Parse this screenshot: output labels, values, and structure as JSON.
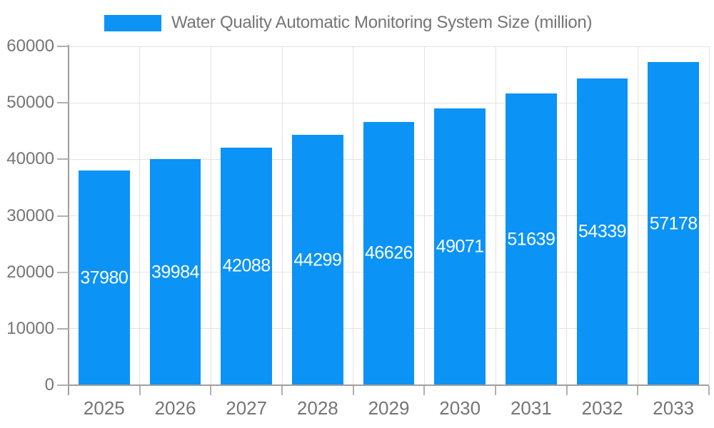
{
  "legend": {
    "label": "Water Quality Automatic Monitoring System Size (million)"
  },
  "chart_data": {
    "type": "bar",
    "title": "Water Quality Automatic Monitoring System Size (million)",
    "categories": [
      "2025",
      "2026",
      "2027",
      "2028",
      "2029",
      "2030",
      "2031",
      "2032",
      "2033"
    ],
    "values": [
      37980,
      39984,
      42088,
      44299,
      46626,
      49071,
      51639,
      54339,
      57178
    ],
    "xlabel": "",
    "ylabel": "",
    "ylim": [
      0,
      60000
    ],
    "yticks": [
      0,
      10000,
      20000,
      30000,
      40000,
      50000,
      60000
    ],
    "grid": true,
    "legend_position": "top",
    "colors": {
      "bar": "#0b93f6",
      "bar_value_text": "#ffffff",
      "axis_line": "#9e9e9e",
      "gridline": "#e3e3e3",
      "tick": "#b0b0b0",
      "text": "#757575"
    }
  }
}
